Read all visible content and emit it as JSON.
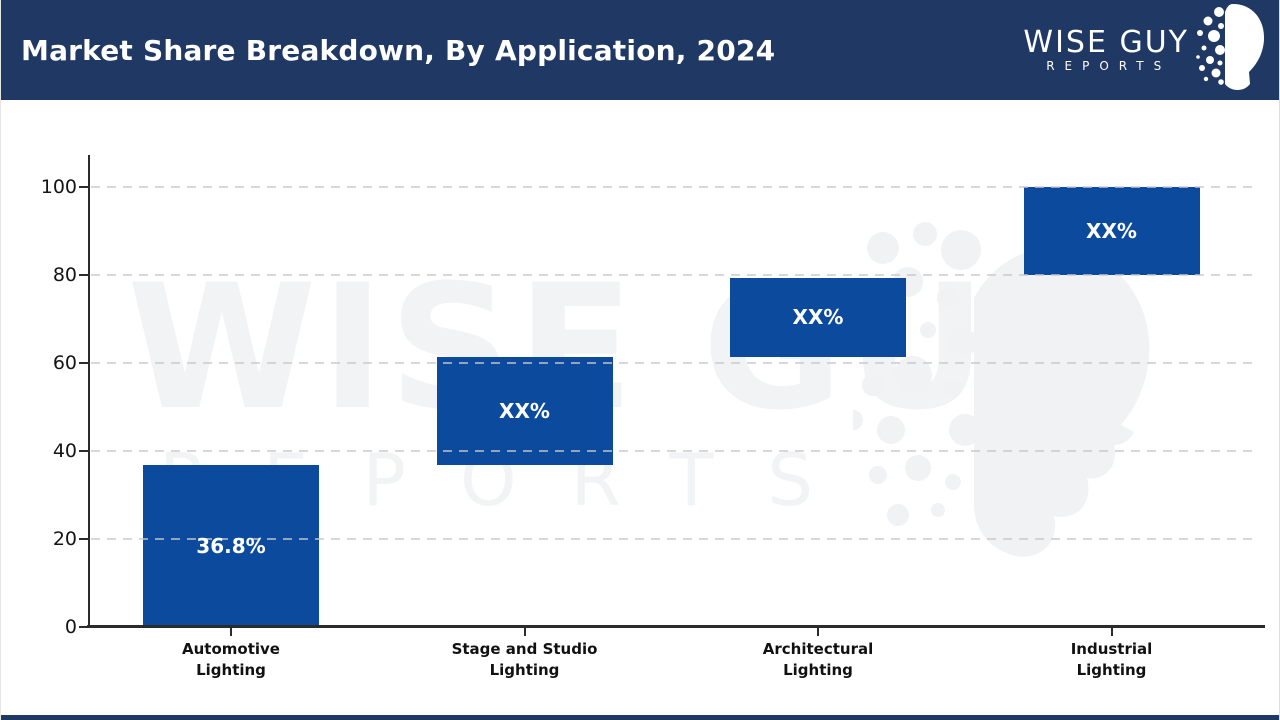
{
  "header": {
    "title": "Market Share Breakdown, By Application, 2024",
    "bg_color": "#203864",
    "logo": {
      "line1": "WISE GUY",
      "line2": "REPORTS"
    }
  },
  "watermark": {
    "line1": "WISE GUY",
    "line2": "REPORTS"
  },
  "footer": {
    "bg_color": "#203864"
  },
  "chart_data": {
    "type": "bar",
    "variant": "waterfall-floating-bars",
    "title": "Market Share Breakdown, By Application, 2024",
    "categories": [
      "Automotive Lighting",
      "Stage and Studio Lighting",
      "Architectural Lighting",
      "Industrial Lighting"
    ],
    "category_lines": [
      [
        "Automotive",
        "Lighting"
      ],
      [
        "Stage and Studio",
        "Lighting"
      ],
      [
        "Architectural",
        "Lighting"
      ],
      [
        "Industrial",
        "Lighting"
      ]
    ],
    "segments": [
      {
        "label": "36.8%",
        "start": 0,
        "end": 36.8
      },
      {
        "label": "XX%",
        "start": 36.8,
        "end": 61.4
      },
      {
        "label": "XX%",
        "start": 61.4,
        "end": 79.4
      },
      {
        "label": "XX%",
        "start": 80,
        "end": 100
      }
    ],
    "ylim": [
      0,
      100
    ],
    "yticks": [
      0,
      20,
      40,
      60,
      80,
      100
    ],
    "xlabel": "",
    "ylabel": "",
    "grid": "horizontal-dashed",
    "legend": false,
    "bar_color": "#0c4a9e",
    "bar_label_color": "#ffffff"
  }
}
